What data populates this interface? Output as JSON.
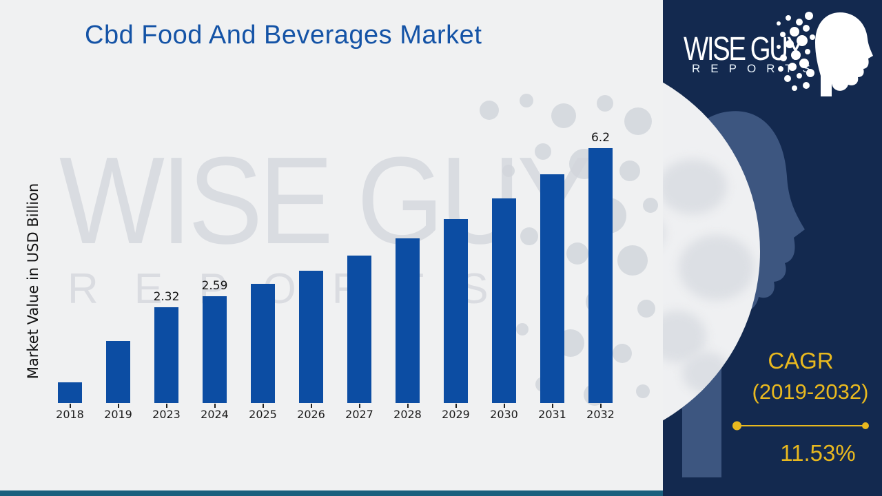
{
  "page": {
    "background_color": "#f0f1f2",
    "footer_bar_color": "#1a5f7d"
  },
  "chart_data": {
    "type": "bar",
    "title": "Cbd Food And Beverages Market",
    "xlabel": "",
    "ylabel": "Market Value in USD Billion",
    "categories": [
      "2018",
      "2019",
      "2023",
      "2024",
      "2025",
      "2026",
      "2027",
      "2028",
      "2029",
      "2030",
      "2031",
      "2032"
    ],
    "values": [
      0.5,
      1.5,
      2.32,
      2.59,
      2.9,
      3.22,
      3.59,
      4.01,
      4.47,
      4.98,
      5.56,
      6.2
    ],
    "data_labels": [
      "",
      "",
      "2.32",
      "2.59",
      "",
      "",
      "",
      "",
      "",
      "",
      "",
      "6.2"
    ],
    "bar_color": "#0c4da3",
    "ylim": [
      0,
      6.8
    ],
    "grid": false,
    "legend": false
  },
  "watermark": {
    "line1": "WISE GUY",
    "line2": "REPORTS"
  },
  "brand_panel": {
    "bg_color": "#13294f",
    "accent_color": "#e9b91f",
    "face_color": "#3d5680",
    "logo_title": "WISE GUY",
    "logo_subtitle": "REPORTS",
    "cagr_label": "CAGR",
    "cagr_range": "(2019-2032)",
    "cagr_value": "11.53%"
  }
}
